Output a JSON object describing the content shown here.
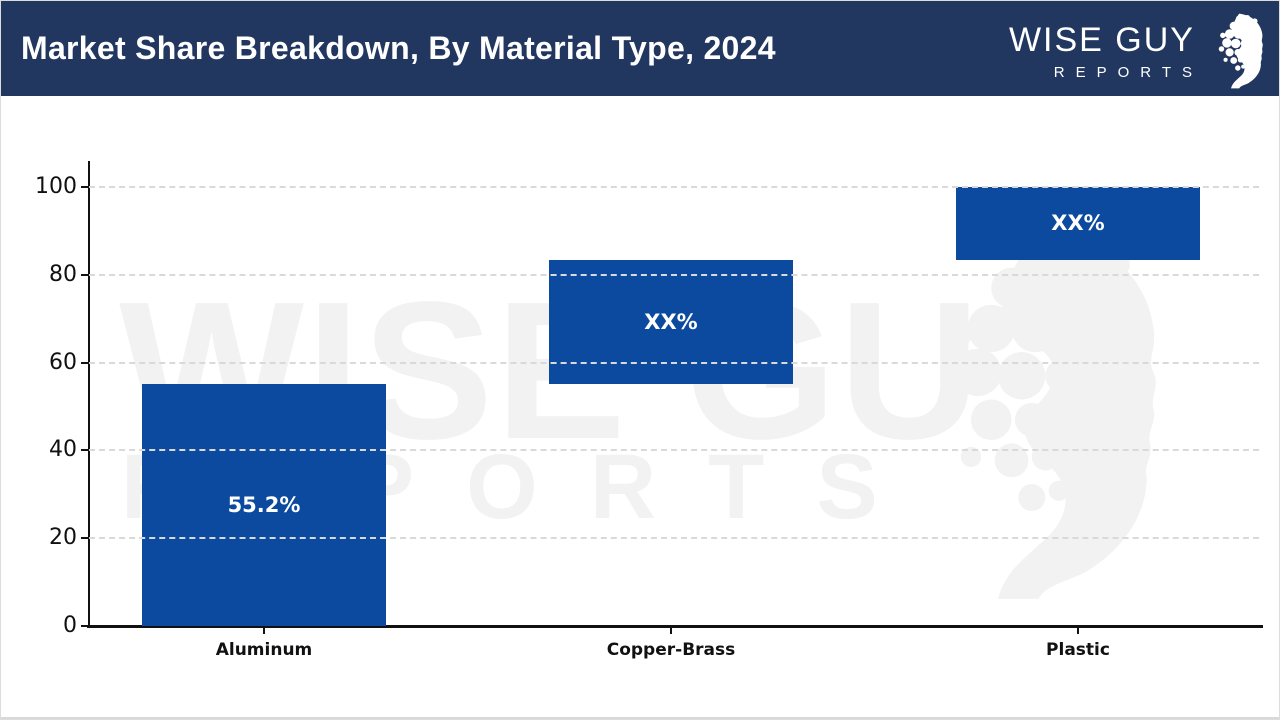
{
  "header": {
    "title": "Market Share Breakdown, By Material Type, 2024",
    "logo": {
      "line1": "WISE GUY",
      "line2": "REPORTS"
    }
  },
  "watermark": {
    "line1": "WISE GU",
    "line2": "REPORTS"
  },
  "colors": {
    "header_bg": "#223760",
    "bar": "#0b4a9e",
    "grid": "#d9d9d9",
    "axis": "#111111",
    "title_text": "#ffffff",
    "bar_label_text": "#ffffff",
    "watermark": "#f2f2f2"
  },
  "chart_data": {
    "type": "bar",
    "subtype": "waterfall",
    "title": "Market Share Breakdown, By Material Type, 2024",
    "categories": [
      "Aluminum",
      "Copper-Brass",
      "Plastic"
    ],
    "bars": [
      {
        "category": "Aluminum",
        "start": 0,
        "end": 55.2,
        "label": "55.2%"
      },
      {
        "category": "Copper-Brass",
        "start": 55.2,
        "end": 83.4,
        "label": "XX%"
      },
      {
        "category": "Plastic",
        "start": 83.4,
        "end": 100,
        "label": "XX%"
      }
    ],
    "xlabel": "",
    "ylabel": "",
    "ylim": [
      0,
      100
    ],
    "yticks": [
      0,
      20,
      40,
      60,
      80,
      100
    ],
    "grid": "horizontal-dashed",
    "gridlines_above_bars": true,
    "legend": "none",
    "bar_color": "#0b4a9e"
  }
}
